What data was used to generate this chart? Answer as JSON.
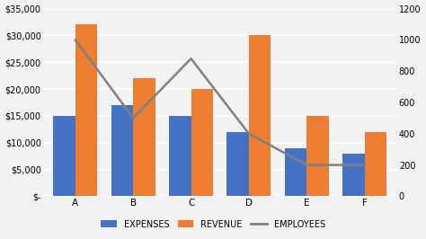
{
  "categories": [
    "A",
    "B",
    "C",
    "D",
    "E",
    "F"
  ],
  "expenses": [
    15000,
    17000,
    15000,
    12000,
    9000,
    8000
  ],
  "revenue": [
    32000,
    22000,
    20000,
    30000,
    15000,
    12000
  ],
  "employees": [
    1000,
    500,
    880,
    400,
    200,
    200
  ],
  "bar_width": 0.38,
  "expenses_color": "#4472C4",
  "revenue_color": "#ED7D31",
  "employees_color": "#808080",
  "left_ylim": [
    0,
    35000
  ],
  "right_ylim": [
    0,
    1200
  ],
  "left_yticks": [
    0,
    5000,
    10000,
    15000,
    20000,
    25000,
    30000,
    35000
  ],
  "right_yticks": [
    0,
    200,
    400,
    600,
    800,
    1000,
    1200
  ],
  "legend_labels": [
    "EXPENSES",
    "REVENUE",
    "EMPLOYEES"
  ],
  "bg_color": "#F2F2F2",
  "plot_bg_color": "#F2F2F2",
  "grid_color": "#FFFFFF"
}
